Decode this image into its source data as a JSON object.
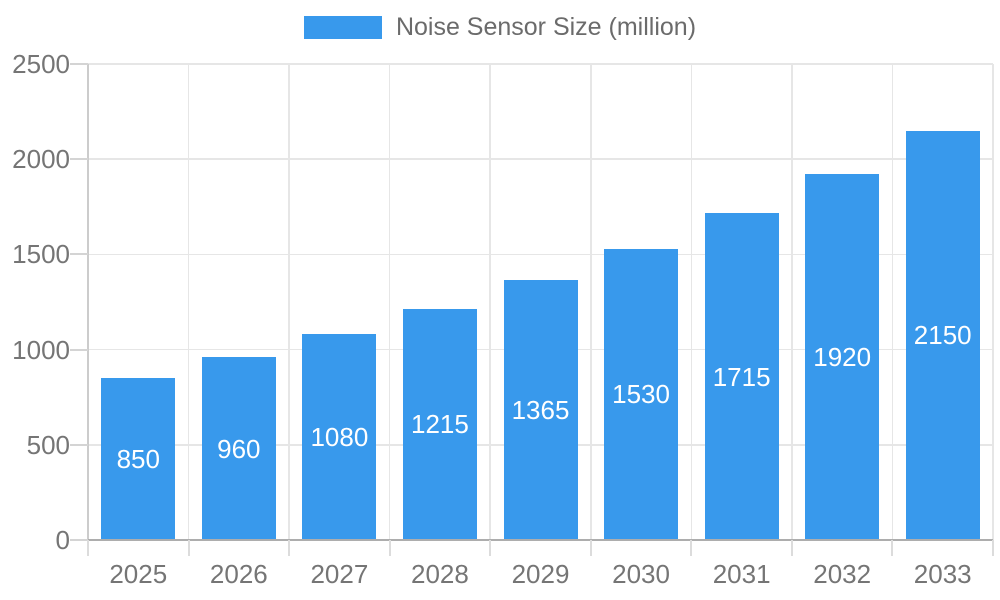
{
  "legend": {
    "label": "Noise Sensor Size (million)"
  },
  "colors": {
    "bar": "#3899ec",
    "bar_label_text": "#ffffff",
    "axis_text": "#757575",
    "legend_text": "#6b6b6b",
    "gridline": "#e6e6e6",
    "baseline": "#adadad",
    "background": "#ffffff"
  },
  "chart_data": {
    "type": "bar",
    "title": "Noise Sensor Size (million)",
    "categories": [
      "2025",
      "2026",
      "2027",
      "2028",
      "2029",
      "2030",
      "2031",
      "2032",
      "2033"
    ],
    "series": [
      {
        "name": "Noise Sensor Size (million)",
        "values": [
          850,
          960,
          1080,
          1215,
          1365,
          1530,
          1715,
          1920,
          2150
        ]
      }
    ],
    "bar_value_labels": [
      "850",
      "960",
      "1080",
      "1215",
      "1365",
      "1530",
      "1715",
      "1920",
      "2150"
    ],
    "xlabel": "",
    "ylabel": "",
    "y_ticks": [
      0,
      500,
      1000,
      1500,
      2000,
      2500
    ],
    "y_tick_labels": [
      "0",
      "500",
      "1000",
      "1500",
      "2000",
      "2500"
    ],
    "ylim": [
      0,
      2500
    ],
    "grid": true,
    "legend_position": "top",
    "value_labels_position": "center-inside"
  }
}
